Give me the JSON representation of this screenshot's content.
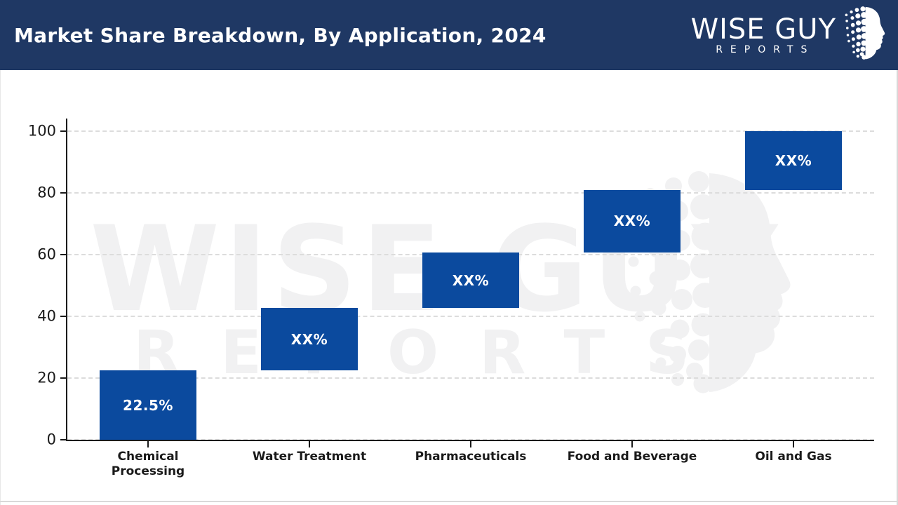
{
  "header": {
    "title": "Market Share Breakdown, By Application, 2024",
    "bg_color": "#1f3864",
    "logo": {
      "wordmark": "WISE GUY",
      "subtext": "REPORTS"
    }
  },
  "watermark": {
    "wordmark": "WISE GUY",
    "subtext": "REPORTS"
  },
  "chart_data": {
    "type": "bar",
    "subtype": "waterfall",
    "title": "Market Share Breakdown, By Application, 2024",
    "xlabel": "",
    "ylabel": "",
    "ylim": [
      0,
      104
    ],
    "y_ticks": [
      0,
      20,
      40,
      60,
      80,
      100
    ],
    "grid": "horizontal-dashed",
    "legend": "none",
    "bar_color": "#0b4a9e",
    "categories": [
      "Chemical Processing",
      "Water Treatment",
      "Pharmaceuticals",
      "Food and Beverage",
      "Oil and Gas"
    ],
    "segments": [
      {
        "category": "Chemical Processing",
        "axis_label": "Chemical\nProcessing",
        "start": 0,
        "end": 22.5,
        "value_label": "22.5%"
      },
      {
        "category": "Water Treatment",
        "axis_label": "Water Treatment",
        "start": 22.5,
        "end": 42.7,
        "value_label": "XX%"
      },
      {
        "category": "Pharmaceuticals",
        "axis_label": "Pharmaceuticals",
        "start": 42.7,
        "end": 60.7,
        "value_label": "XX%"
      },
      {
        "category": "Food and Beverage",
        "axis_label": "Food and Beverage",
        "start": 60.7,
        "end": 80.9,
        "value_label": "XX%"
      },
      {
        "category": "Oil and Gas",
        "axis_label": "Oil and Gas",
        "start": 80.9,
        "end": 100,
        "value_label": "XX%"
      }
    ]
  }
}
